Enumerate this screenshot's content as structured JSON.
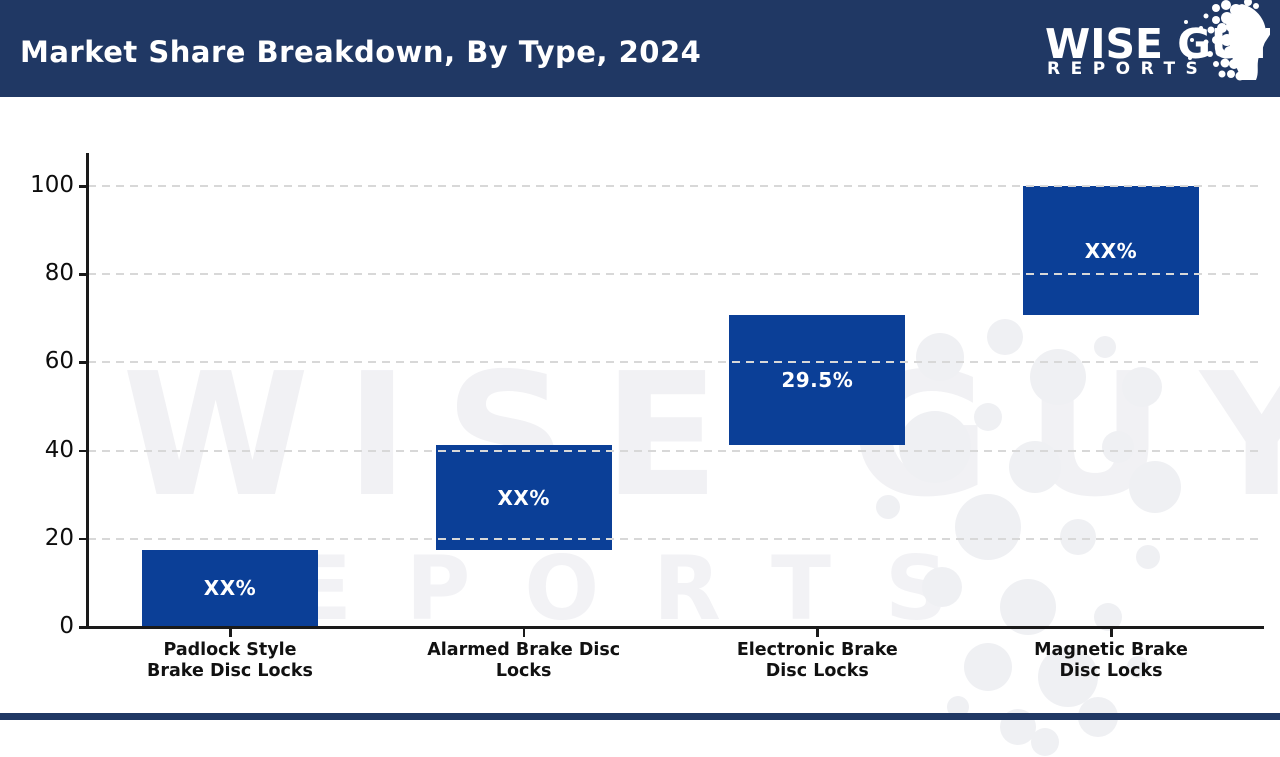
{
  "header": {
    "title": "Market Share Breakdown, By Type, 2024",
    "bg_color": "#203864",
    "logo": {
      "line1": "WISE GUY",
      "line2": "REPORTS"
    }
  },
  "watermark": {
    "line1": "WISE GUY",
    "line2": "REPORTS"
  },
  "chart_data": {
    "type": "bar",
    "variant": "waterfall-floating-bars",
    "title": "Market Share Breakdown, By Type, 2024",
    "categories": [
      "Padlock Style\nBrake Disc Locks",
      "Alarmed Brake Disc\nLocks",
      "Electronic Brake\nDisc Locks",
      "Magnetic Brake\nDisc Locks"
    ],
    "segments": [
      {
        "start": 0,
        "end": 17.5,
        "label": "XX%"
      },
      {
        "start": 17.5,
        "end": 41.2,
        "label": "XX%"
      },
      {
        "start": 41.2,
        "end": 70.7,
        "label": "29.5%"
      },
      {
        "start": 70.7,
        "end": 100,
        "label": "XX%"
      }
    ],
    "yticks": [
      0,
      20,
      40,
      60,
      80,
      100
    ],
    "ylim": [
      0,
      107
    ],
    "xlabel": "",
    "ylabel": "",
    "grid": "dashed-horizontal",
    "legend": "none",
    "bar_color": "#0b3f97",
    "bar_label_color": "#ffffff",
    "axis_color": "#1a1a1a",
    "grid_color": "#d8d8d8"
  }
}
